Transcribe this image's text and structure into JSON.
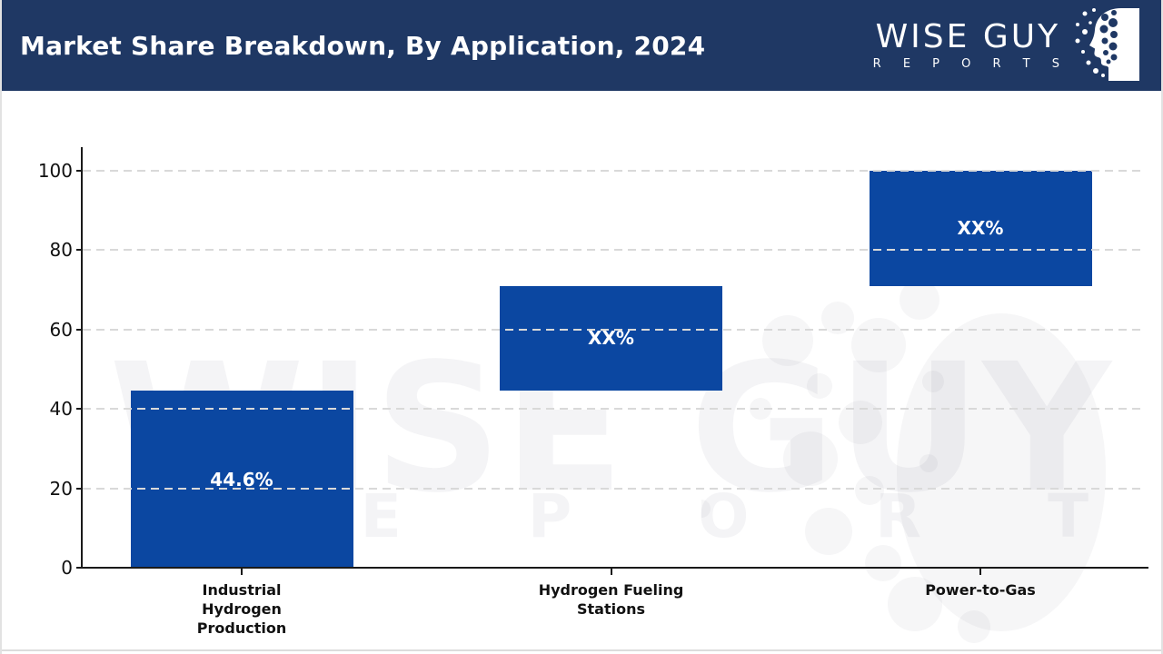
{
  "header": {
    "title": "Market Share Breakdown, By Application, 2024",
    "bg_color": "#1f3864",
    "logo": {
      "line1": "WISE GUY",
      "line2": "R E P O R T S"
    }
  },
  "watermark": {
    "line1": "WISE GUY",
    "line2": "R E P O R T S"
  },
  "chart_data": {
    "type": "bar",
    "subtype": "waterfall",
    "title": "Market Share Breakdown, By Application, 2024",
    "categories": [
      "Industrial Hydrogen Production",
      "Hydrogen Fueling Stations",
      "Power-to-Gas"
    ],
    "category_lines": [
      [
        "Industrial",
        "Hydrogen",
        "Production"
      ],
      [
        "Hydrogen Fueling",
        "Stations"
      ],
      [
        "Power-to-Gas"
      ]
    ],
    "series": [
      {
        "name": "Market Share",
        "segments": [
          {
            "category": "Industrial Hydrogen Production",
            "start": 0,
            "end": 44.6,
            "label": "44.6%"
          },
          {
            "category": "Hydrogen Fueling Stations",
            "start": 44.6,
            "end": 71,
            "label": "XX%"
          },
          {
            "category": "Power-to-Gas",
            "start": 71,
            "end": 100,
            "label": "XX%"
          }
        ]
      }
    ],
    "bar_color": "#0b47a1",
    "value_label_color": "#ffffff",
    "yticks": [
      0,
      20,
      40,
      60,
      80,
      100
    ],
    "ylim": [
      0,
      106
    ],
    "grid": "dashed-horizontal-on-top",
    "gridline_color": "#d9d9d9",
    "xlabel": "",
    "ylabel": "",
    "legend": "none"
  }
}
